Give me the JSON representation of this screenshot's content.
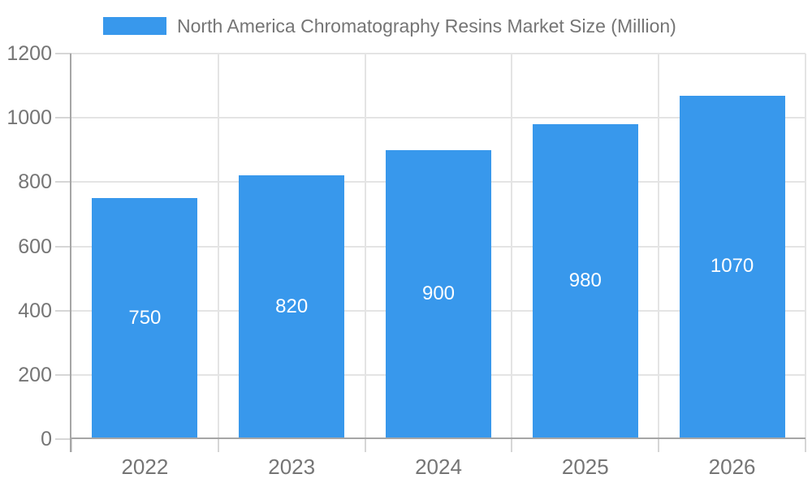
{
  "chart_data": {
    "type": "bar",
    "title": "North America Chromatography Resins Market Size (Million)",
    "series_name": "North America Chromatography Resins Market Size (Million)",
    "categories": [
      "2022",
      "2023",
      "2024",
      "2025",
      "2026"
    ],
    "values": [
      750,
      820,
      900,
      980,
      1070
    ],
    "bar_labels": [
      "750",
      "820",
      "900",
      "980",
      "1070"
    ],
    "xlabel": "",
    "ylabel": "",
    "ylim": [
      0,
      1200
    ],
    "yticks": [
      0,
      200,
      400,
      600,
      800,
      1000,
      1200
    ],
    "grid": true,
    "legend_position": "top"
  },
  "colors": {
    "bar": "#3898ec",
    "bar_value_label": "#ffffff",
    "axis": "#a6a6a6",
    "gridline": "#e4e4e4",
    "tick": "#d6d6d6",
    "text": "#757575",
    "background": "#ffffff"
  }
}
